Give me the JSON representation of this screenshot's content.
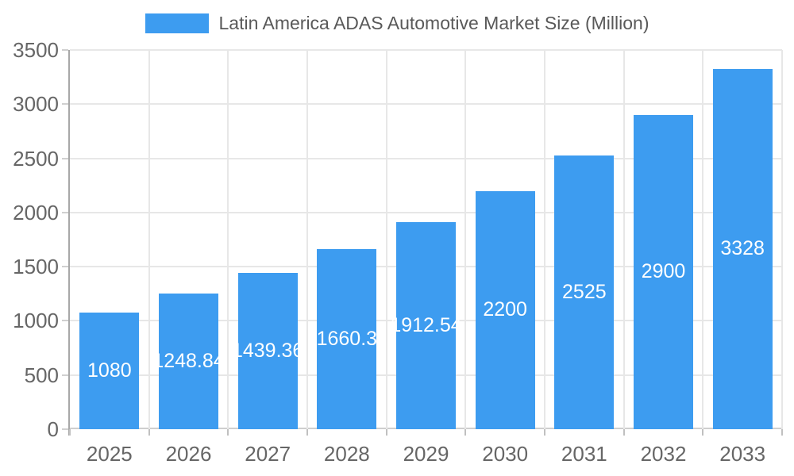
{
  "legend": {
    "label": "Latin America ADAS Automotive Market Size (Million)",
    "position": "top"
  },
  "colors": {
    "bar": "#3d9cf0",
    "bar_label_text": "#ffffff",
    "axis_text": "#666666",
    "legend_text": "#595959",
    "grid": "#e7e7e7",
    "axis_line": "#a8a8a8",
    "background": "#ffffff"
  },
  "chart_data": {
    "type": "bar",
    "title": "Latin America ADAS Automotive Market Size (Million)",
    "xlabel": "",
    "ylabel": "",
    "categories": [
      "2025",
      "2026",
      "2027",
      "2028",
      "2029",
      "2030",
      "2031",
      "2032",
      "2033"
    ],
    "values": [
      1080,
      1248.84,
      1439.36,
      1660.3,
      1912.54,
      2200,
      2525,
      2900,
      3328
    ],
    "bar_labels": [
      "1080",
      "1248.84",
      "1439.36",
      "1660.3",
      "1912.54",
      "2200",
      "2525",
      "2900",
      "3328"
    ],
    "ylim": [
      0,
      3500
    ],
    "ytick_step": 500,
    "yticks": [
      "0",
      "500",
      "1000",
      "1500",
      "2000",
      "2500",
      "3000",
      "3500"
    ],
    "grid": true,
    "legend_position": "top"
  }
}
